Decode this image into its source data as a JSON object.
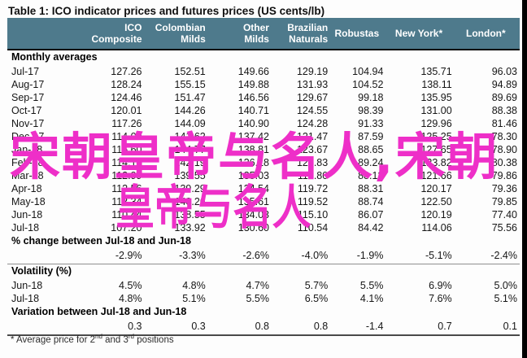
{
  "title": "Table 1:  ICO indicator prices and futures prices (US cents/lb)",
  "colors": {
    "header_bg": "#4e7a8c",
    "watermark": "#ee2fc8",
    "header_text": "#ffffff"
  },
  "watermark": {
    "line1": "宋朝皇帝与名人,宋朝",
    "line2": "皇帝与名人"
  },
  "footnote": {
    "pre": "* Average price for 2",
    "sup1": "nd",
    "mid": " and 3",
    "sup2": "rd",
    "post": " positions"
  },
  "chart_data": {
    "type": "table",
    "title": "Table 1:  ICO indicator prices and futures prices (US cents/lb)",
    "columns": [
      {
        "line1": "ICO",
        "line2": "Composite"
      },
      {
        "line1": "Colombian",
        "line2": "Milds"
      },
      {
        "line1": "Other",
        "line2": "Milds"
      },
      {
        "line1": "Brazilian",
        "line2": "Naturals"
      },
      {
        "line1": "Robustas",
        "line2": ""
      },
      {
        "line1": "New York*",
        "line2": ""
      },
      {
        "line1": "London*",
        "line2": ""
      }
    ],
    "sections": [
      {
        "label": "Monthly averages",
        "rows": [
          {
            "label": "Jul-17",
            "values": [
              "127.26",
              "152.51",
              "149.66",
              "129.19",
              "104.94",
              "135.71",
              "96.03"
            ]
          },
          {
            "label": "Aug-17",
            "values": [
              "128.24",
              "155.15",
              "149.88",
              "131.93",
              "104.52",
              "138.11",
              "94.89"
            ]
          },
          {
            "label": "Sep-17",
            "values": [
              "124.46",
              "151.47",
              "146.56",
              "129.67",
              "99.18",
              "135.95",
              "89.69"
            ]
          },
          {
            "label": "Oct-17",
            "values": [
              "120.01",
              "144.26",
              "140.71",
              "124.55",
              "98.39",
              "131.00",
              "88.38"
            ]
          },
          {
            "label": "Nov-17",
            "values": [
              "117.26",
              "144.09",
              "140.90",
              "124.28",
              "91.33",
              "129.96",
              "81.46"
            ]
          },
          {
            "label": "Dec-17",
            "values": [
              "114.00",
              "141.62",
              "137.42",
              "121.47",
              "87.59",
              "125.25",
              "78.30"
            ]
          },
          {
            "label": "Jan-18",
            "values": [
              "115.60",
              "144.77",
              "138.81",
              "123.67",
              "88.65",
              "127.65",
              "78.90"
            ]
          },
          {
            "label": "Feb-18",
            "values": [
              "114.19",
              "142.19",
              "136.18",
              "121.83",
              "89.24",
              "123.82",
              "80.38"
            ]
          },
          {
            "label": "Mar-18",
            "values": [
              "112.99",
              "139.55",
              "135.03",
              "119.80",
              "88.13",
              "121.66",
              "79.86"
            ]
          },
          {
            "label": "Apr-18",
            "values": [
              "112.56",
              "139.29",
              "134.54",
              "119.72",
              "88.31",
              "120.17",
              "79.36"
            ]
          },
          {
            "label": "May-18",
            "values": [
              "113.34",
              "140.26",
              "135.61",
              "119.52",
              "88.74",
              "122.50",
              "79.85"
            ]
          },
          {
            "label": "Jun-18",
            "values": [
              "110.44",
              "138.55",
              "134.03",
              "115.10",
              "86.07",
              "120.19",
              "77.40"
            ]
          },
          {
            "label": "Jul-18",
            "values": [
              "107.20",
              "133.92",
              "130.60",
              "110.54",
              "84.42",
              "114.06",
              "75.56"
            ]
          }
        ]
      },
      {
        "label": "% change between Jul-18 and Jun-18",
        "rows": [
          {
            "label": "",
            "values": [
              "-2.9%",
              "-3.3%",
              "-2.6%",
              "-4.0%",
              "-1.9%",
              "-5.1%",
              "-2.4%"
            ]
          }
        ]
      },
      {
        "label": "Volatility (%)",
        "rows": [
          {
            "label": "Jun-18",
            "values": [
              "4.5%",
              "4.8%",
              "4.7%",
              "5.7%",
              "5.5%",
              "6.9%",
              "5.0%"
            ]
          },
          {
            "label": "Jul-18",
            "values": [
              "4.8%",
              "5.1%",
              "5.5%",
              "6.5%",
              "4.1%",
              "7.6%",
              "5.1%"
            ]
          }
        ]
      },
      {
        "label": "Variation between Jul-18 and Jun-18",
        "rows": [
          {
            "label": "",
            "values": [
              "0.3",
              "0.3",
              "0.8",
              "0.8",
              "-1.4",
              "0.7",
              "0.1"
            ]
          }
        ]
      }
    ]
  }
}
